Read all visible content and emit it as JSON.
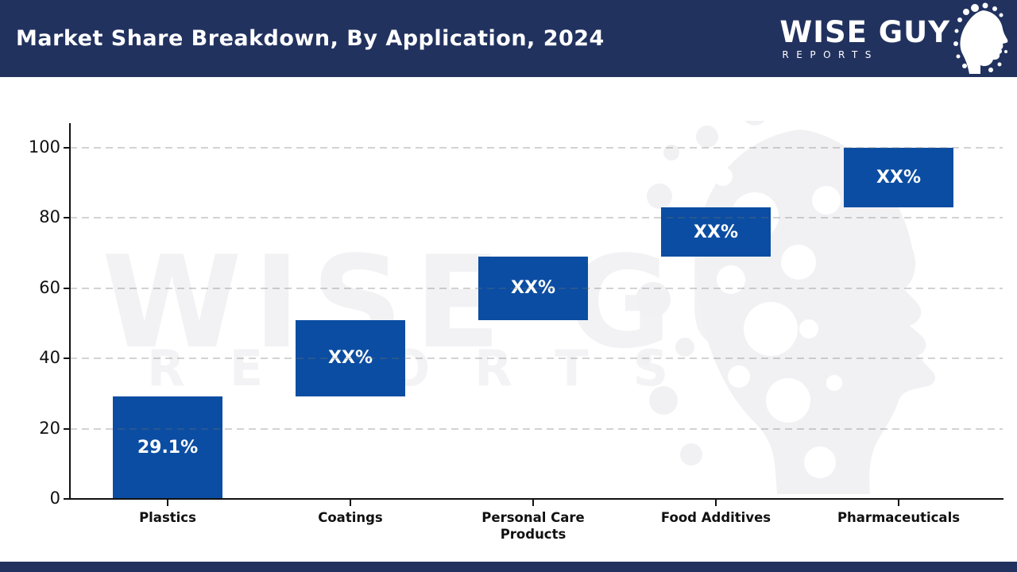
{
  "header": {
    "title": "Market Share Breakdown, By Application, 2024",
    "logo_line1": "WISE GUY",
    "logo_line2": "REPORTS"
  },
  "watermark": {
    "line1": "WISE GUY",
    "line2": "REPORTS"
  },
  "chart_data": {
    "type": "bar",
    "subtype": "waterfall",
    "title": "Market Share Breakdown, By Application, 2024",
    "categories": [
      "Plastics",
      "Coatings",
      "Personal Care Products",
      "Food Additives",
      "Pharmaceuticals"
    ],
    "segments": [
      {
        "category": "Plastics",
        "start": 0,
        "end": 29.1,
        "label": "29.1%"
      },
      {
        "category": "Coatings",
        "start": 29.1,
        "end": 51,
        "label": "XX%"
      },
      {
        "category": "Personal Care Products",
        "start": 51,
        "end": 69,
        "label": "XX%"
      },
      {
        "category": "Food Additives",
        "start": 69,
        "end": 83,
        "label": "XX%"
      },
      {
        "category": "Pharmaceuticals",
        "start": 83,
        "end": 100,
        "label": "XX%"
      }
    ],
    "xlabel": "",
    "ylabel": "",
    "yticks": [
      0,
      20,
      40,
      60,
      80,
      100
    ],
    "ylim": [
      0,
      107
    ],
    "grid": "horizontal-dashed",
    "legend": "none"
  },
  "colors": {
    "navy": "#22325f",
    "bar_blue": "#0b4da2",
    "grid": "#d8d8d8",
    "axis": "#111111",
    "watermark": "#f2f2f4"
  }
}
